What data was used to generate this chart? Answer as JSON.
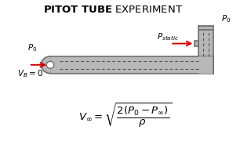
{
  "title_bold": "PITOT TUBE",
  "title_normal": " EXPERIMENT",
  "bg_color": "#ffffff",
  "tube_color": "#b8b8b8",
  "tube_edge_color": "#707070",
  "dashed_color": "#555555",
  "arrow_color": "#cc0000",
  "text_color": "#000000",
  "formula": "$V_{\\infty} = \\sqrt{\\dfrac{2(P_0 - P_{\\infty})}{\\rho}}$"
}
